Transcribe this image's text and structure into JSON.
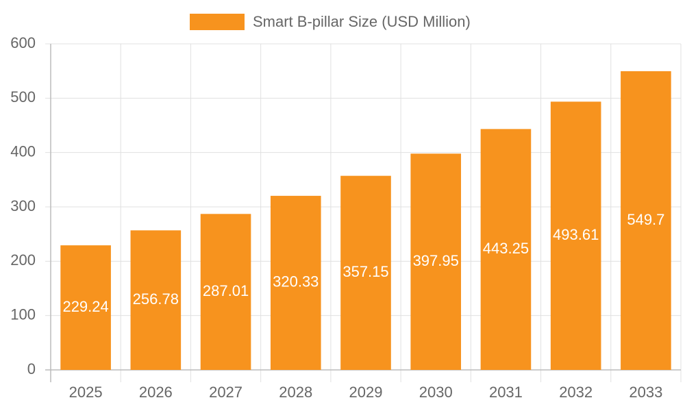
{
  "chart_data": {
    "type": "bar",
    "categories": [
      "2025",
      "2026",
      "2027",
      "2028",
      "2029",
      "2030",
      "2031",
      "2032",
      "2033"
    ],
    "series": [
      {
        "name": "Smart B-pillar Size (USD Million)",
        "color": "#f7931e",
        "values": [
          229.24,
          256.78,
          287.01,
          320.33,
          357.15,
          397.95,
          443.25,
          493.61,
          549.7
        ]
      }
    ],
    "ylim": [
      0,
      600
    ],
    "yticks": [
      0,
      100,
      200,
      300,
      400,
      500,
      600
    ],
    "grid": true,
    "legend": "top"
  }
}
